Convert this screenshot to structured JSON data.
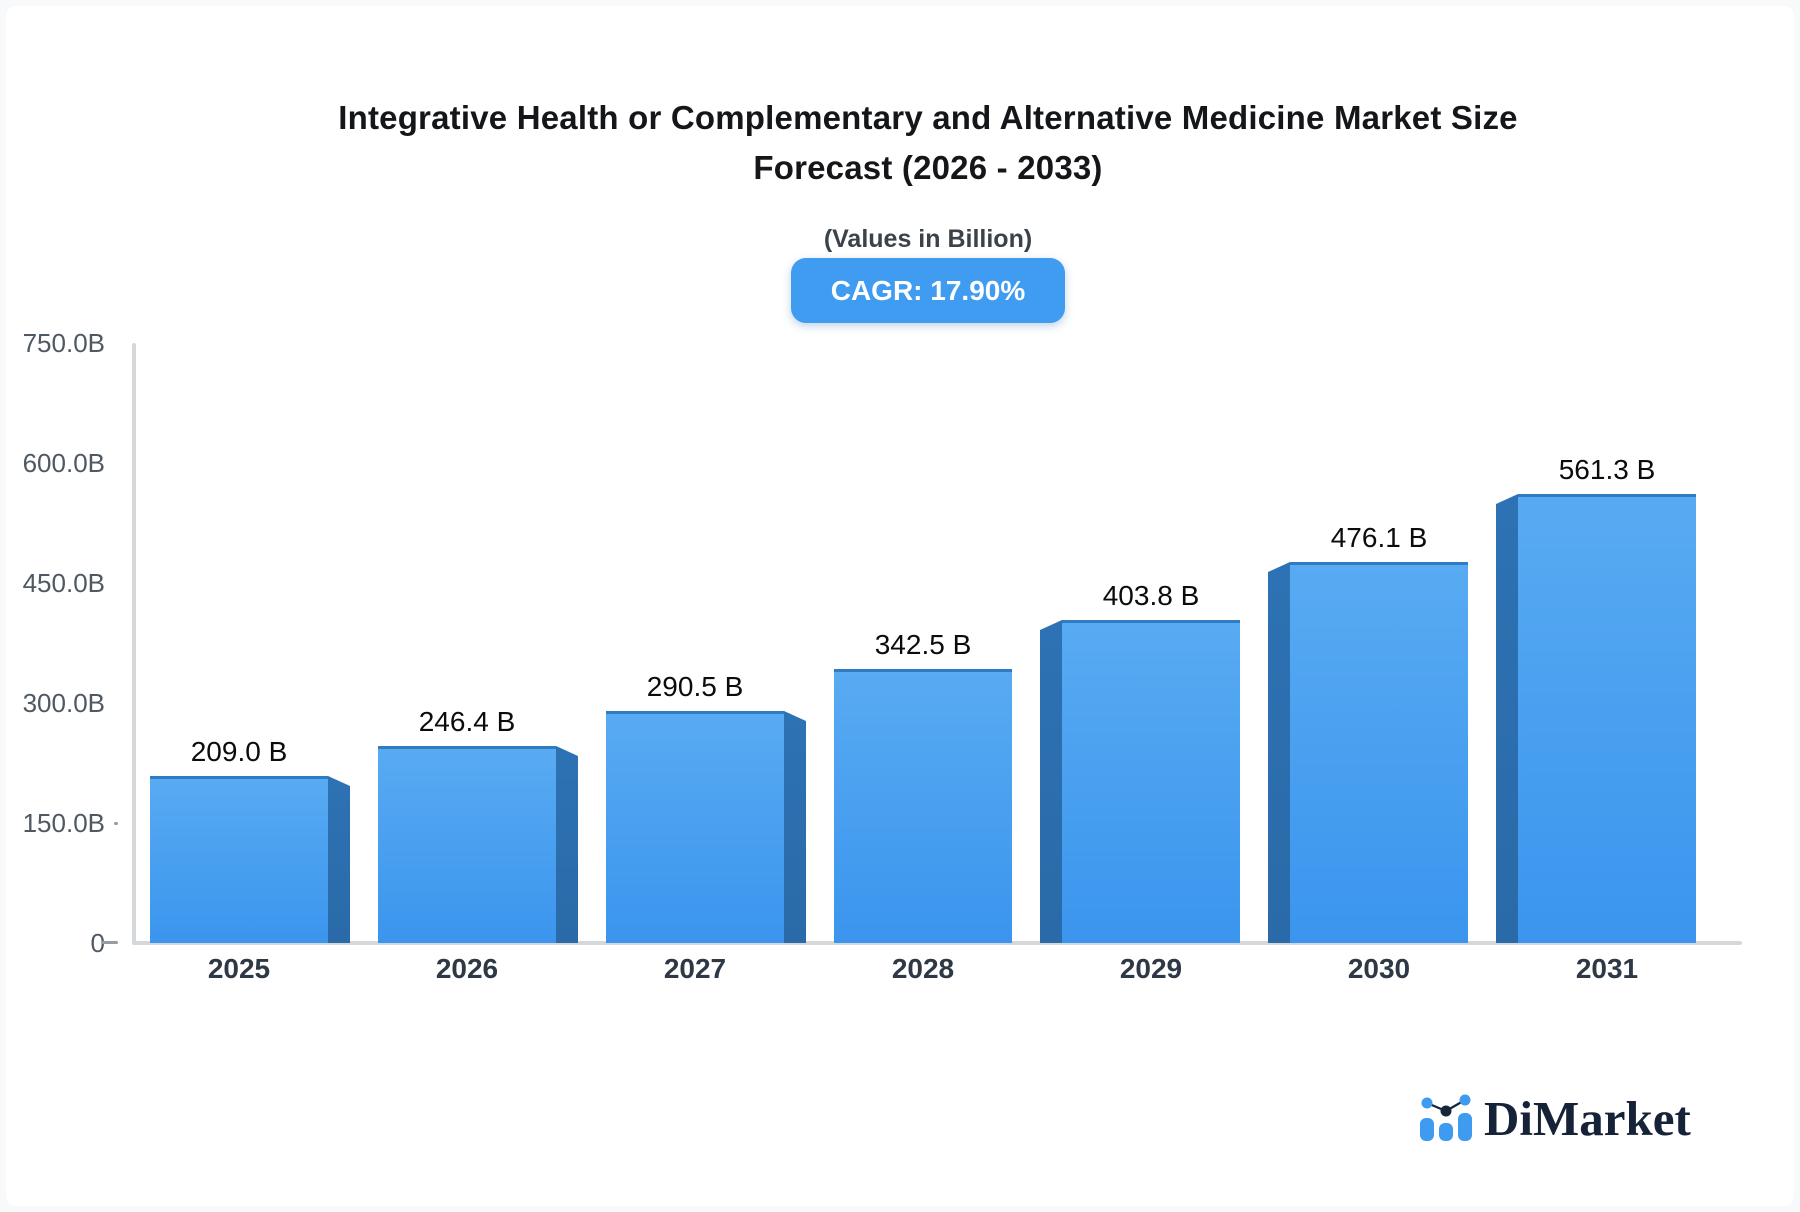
{
  "header": {
    "title_line1": "Integrative Health or Complementary and Alternative Medicine Market Size",
    "title_line2": "Forecast (2026 - 2033)",
    "subtitle": "(Values in Billion)",
    "cagr_badge": "CAGR: 17.90%"
  },
  "chart_data": {
    "type": "bar",
    "title": "Integrative Health or Complementary and Alternative Medicine Market Size Forecast (2026 - 2033)",
    "subtitle": "(Values in Billion)",
    "cagr_pct": 17.9,
    "unit": "Billion",
    "categories": [
      "2025",
      "2026",
      "2027",
      "2028",
      "2029",
      "2030",
      "2031"
    ],
    "values": [
      209.0,
      246.4,
      290.5,
      342.5,
      403.8,
      476.1,
      561.3
    ],
    "value_labels": [
      "209.0 B",
      "246.4 B",
      "290.5 B",
      "342.5 B",
      "403.8 B",
      "476.1 B",
      "561.3 B"
    ],
    "y_ticks": [
      "750.0B",
      "600.0B",
      "450.0B",
      "300.0B",
      "150.0B",
      "0"
    ],
    "ylim": [
      0,
      750
    ],
    "grid": false,
    "legend": "none",
    "style": "3d-perspective-bars"
  },
  "logo": {
    "text": "DiMarket",
    "icon": "bar-line-chart-icon"
  },
  "colors": {
    "bar_top": "#58abf2",
    "bar_bottom": "#3b95ee",
    "bar_edge": "#2f7cc3",
    "bar_side": "#2d72b4",
    "badge_bg": "#3f9cf0",
    "badge_text": "#ffffff",
    "axis_line": "#d5d8db",
    "tick_text": "#4f5963",
    "year_text": "#2e3945",
    "value_text": "#0b0c0d",
    "title_text": "#141619",
    "subtitle_text": "#3c424a",
    "logo_text": "#152238",
    "logo_blue": "#3f9bf0",
    "page_bg": "#f7f9fb",
    "card_bg": "#ffffff"
  }
}
